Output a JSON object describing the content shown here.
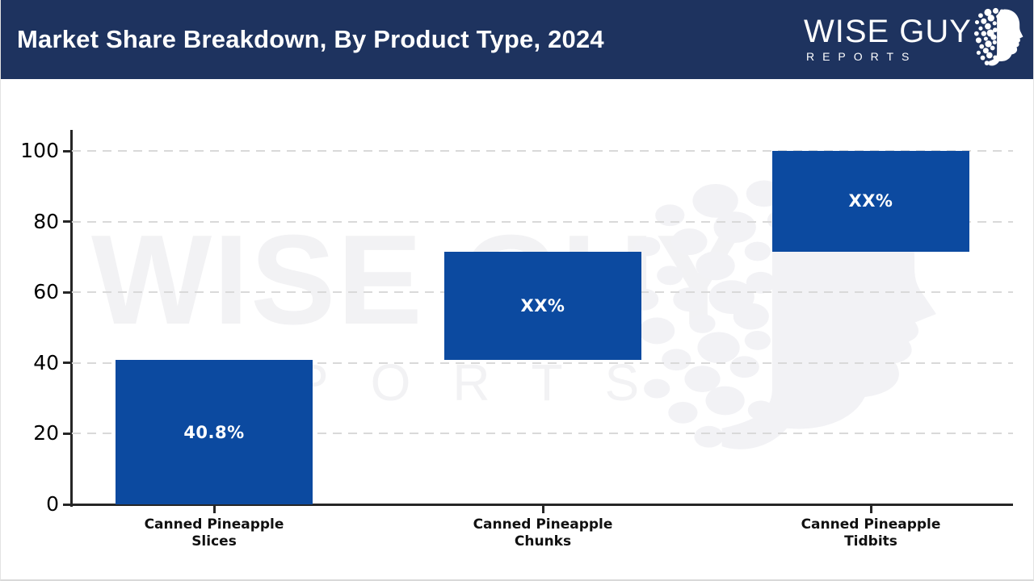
{
  "header": {
    "title": "Market Share Breakdown, By Product Type, 2024",
    "bg_color": "#1e335f",
    "logo": {
      "line1": "WISE GUY",
      "line2": "REPORTS"
    }
  },
  "watermark": {
    "line1": "WISE GUY",
    "line2": "REPORTS"
  },
  "chart_data": {
    "type": "bar",
    "subtype": "stacked-waterfall-percentage",
    "title": "Market Share Breakdown, By Product Type, 2024",
    "xlabel": "",
    "ylabel": "",
    "ylim": [
      0,
      106
    ],
    "yticks": [
      0,
      20,
      40,
      60,
      80,
      100
    ],
    "grid": "horizontal-dashed",
    "legend": null,
    "bar_color": "#0c4aa0",
    "label_color": "#ffffff",
    "categories": [
      [
        "Canned Pineapple",
        "Slices"
      ],
      [
        "Canned Pineapple",
        "Chunks"
      ],
      [
        "Canned Pineapple",
        "Tidbits"
      ]
    ],
    "bars": [
      {
        "category": "Canned Pineapple Slices",
        "base": 0,
        "top": 40.8,
        "label": "40.8%"
      },
      {
        "category": "Canned Pineapple Chunks",
        "base": 40.8,
        "top": 71.5,
        "label": "XX%"
      },
      {
        "category": "Canned Pineapple Tidbits",
        "base": 71.5,
        "top": 100,
        "label": "XX%"
      }
    ]
  }
}
